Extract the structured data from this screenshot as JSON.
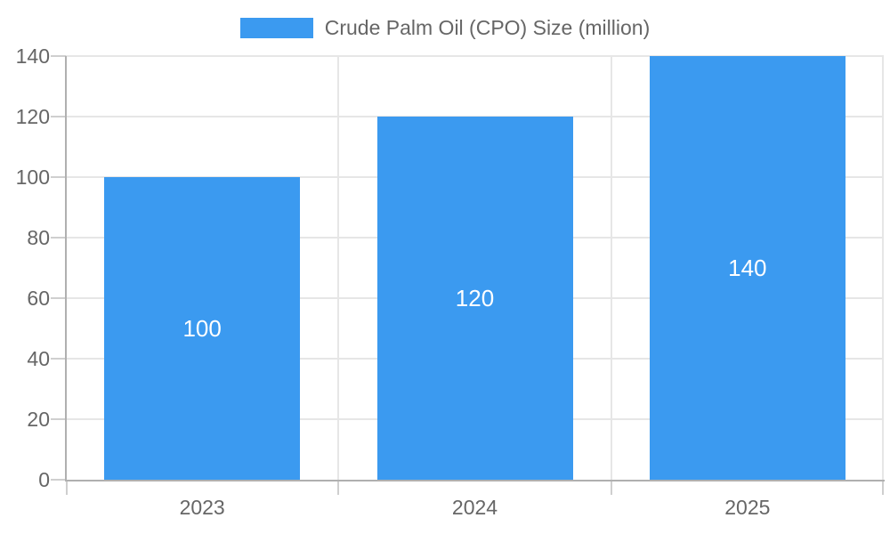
{
  "legend": {
    "position": "top"
  },
  "chart_data": {
    "type": "bar",
    "categories": [
      "2023",
      "2024",
      "2025"
    ],
    "series": [
      {
        "name": "Crude Palm Oil (CPO) Size (million)",
        "values": [
          100,
          120,
          140
        ],
        "color": "#3b9af0"
      }
    ],
    "title": "",
    "xlabel": "",
    "ylabel": "",
    "ylim": [
      0,
      140
    ],
    "yticks": [
      0,
      20,
      40,
      60,
      80,
      100,
      120,
      140
    ],
    "grid": true,
    "legend_position": "top",
    "value_labels": [
      "100",
      "120",
      "140"
    ]
  },
  "colors": {
    "bar": "#3b9af0",
    "grid": "#e6e6e6",
    "tick": "#cfcfcf",
    "axis": "#b0b0b0",
    "tick_label": "#666666",
    "legend_label": "#666666",
    "value_label": "#ffffff"
  }
}
